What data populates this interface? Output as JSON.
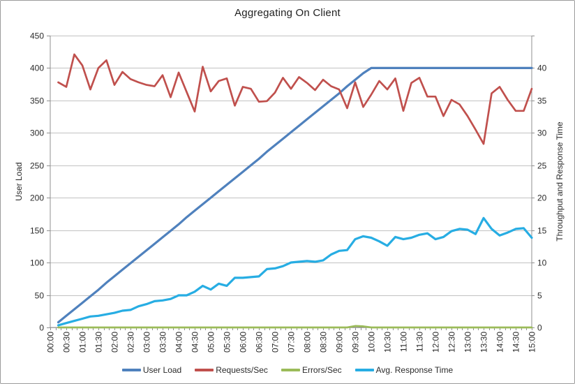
{
  "chart_data": {
    "type": "line",
    "title": "Aggregating On Client",
    "grid": "horizontal",
    "legend_position": "bottom",
    "x_axis": {
      "range_minutes": [
        0,
        900
      ],
      "minor_tick_minutes": 10,
      "label_interval_minutes": 30,
      "tick_labels": [
        "00:00",
        "00:30",
        "01:00",
        "01:30",
        "02:00",
        "02:30",
        "03:00",
        "03:30",
        "04:00",
        "04:30",
        "05:00",
        "05:30",
        "06:00",
        "06:30",
        "07:00",
        "07:30",
        "08:00",
        "08:30",
        "09:00",
        "09:30",
        "10:00",
        "10:30",
        "11:00",
        "11:30",
        "12:00",
        "12:30",
        "13:00",
        "13:30",
        "14:00",
        "14:30",
        "15:00"
      ]
    },
    "y_left": {
      "title": "User Load",
      "min": 0,
      "max": 450,
      "step": 50,
      "tick_labels": [
        "0",
        "50",
        "100",
        "150",
        "200",
        "250",
        "300",
        "350",
        "400",
        "450"
      ]
    },
    "y_right": {
      "title": "Throughput and Response Time",
      "min": 0,
      "max": 40,
      "step": 5,
      "tick_labels": [
        "0",
        "5",
        "10",
        "15",
        "20",
        "25",
        "30",
        "35",
        "40"
      ]
    },
    "sampling": {
      "first_sample_minutes": 15,
      "interval_minutes": 15
    },
    "series": [
      {
        "name": "User Load",
        "color": "#4f81bd",
        "axis": "left",
        "stroke_width": 3.2,
        "values": [
          8,
          18,
          28,
          38,
          48,
          58,
          69,
          79,
          89,
          99,
          109,
          119,
          129,
          139,
          149,
          159,
          170,
          180,
          190,
          200,
          210,
          220,
          230,
          240,
          250,
          260,
          271,
          281,
          291,
          301,
          311,
          321,
          331,
          341,
          351,
          361,
          372,
          382,
          392,
          400,
          400,
          400,
          400,
          400,
          400,
          400,
          400,
          400,
          400,
          400,
          400,
          400,
          400,
          400,
          400,
          400,
          400,
          400,
          400,
          400
        ]
      },
      {
        "name": "Requests/Sec",
        "color": "#c0504d",
        "axis": "left",
        "stroke_width": 2.7,
        "values": [
          378,
          371,
          421,
          404,
          367,
          400,
          412,
          374,
          394,
          383,
          378,
          374,
          372,
          389,
          355,
          393,
          363,
          333,
          402,
          364,
          380,
          384,
          342,
          371,
          368,
          348,
          349,
          362,
          385,
          368,
          386,
          377,
          366,
          382,
          372,
          367,
          338,
          378,
          340,
          359,
          380,
          367,
          384,
          334,
          377,
          385,
          356,
          356,
          326,
          351,
          344,
          326,
          305,
          283,
          361,
          371,
          351,
          334,
          334,
          368
        ]
      },
      {
        "name": "Errors/Sec",
        "color": "#9bbb59",
        "axis": "right",
        "stroke_width": 2.7,
        "values": [
          0,
          0,
          0,
          0,
          0,
          0,
          0,
          0,
          0,
          0,
          0,
          0,
          0,
          0,
          0,
          0,
          0,
          0,
          0,
          0,
          0,
          0,
          0,
          0,
          0,
          0,
          0,
          0,
          0,
          0,
          0,
          0,
          0,
          0,
          0,
          0,
          0,
          0.2,
          0.15,
          0,
          0,
          0,
          0,
          0,
          0,
          0,
          0,
          0,
          0,
          0,
          0,
          0,
          0,
          0,
          0,
          0,
          0,
          0,
          0,
          0
        ]
      },
      {
        "name": "Avg. Response Time",
        "color": "#27ade3",
        "axis": "right",
        "stroke_width": 3.2,
        "values": [
          0.3,
          0.6,
          0.9,
          1.2,
          1.5,
          1.6,
          1.8,
          2.0,
          2.3,
          2.4,
          2.9,
          3.2,
          3.6,
          3.7,
          3.9,
          4.4,
          4.4,
          4.9,
          5.7,
          5.2,
          6.0,
          5.7,
          6.8,
          6.8,
          6.9,
          7.0,
          8.0,
          8.1,
          8.4,
          8.9,
          9.0,
          9.1,
          9.0,
          9.2,
          10.0,
          10.5,
          10.6,
          12.1,
          12.5,
          12.3,
          11.8,
          11.2,
          12.4,
          12.1,
          12.3,
          12.7,
          12.9,
          12.1,
          12.4,
          13.2,
          13.5,
          13.4,
          12.8,
          15.0,
          13.5,
          12.6,
          13.0,
          13.5,
          13.6,
          12.3
        ]
      }
    ],
    "colors": {
      "gridline": "#c2c2c2",
      "axis_line": "#8f8f8f",
      "text": "#2b2b2b",
      "frame_border": "#9b9b9b",
      "background": "#ffffff"
    }
  }
}
